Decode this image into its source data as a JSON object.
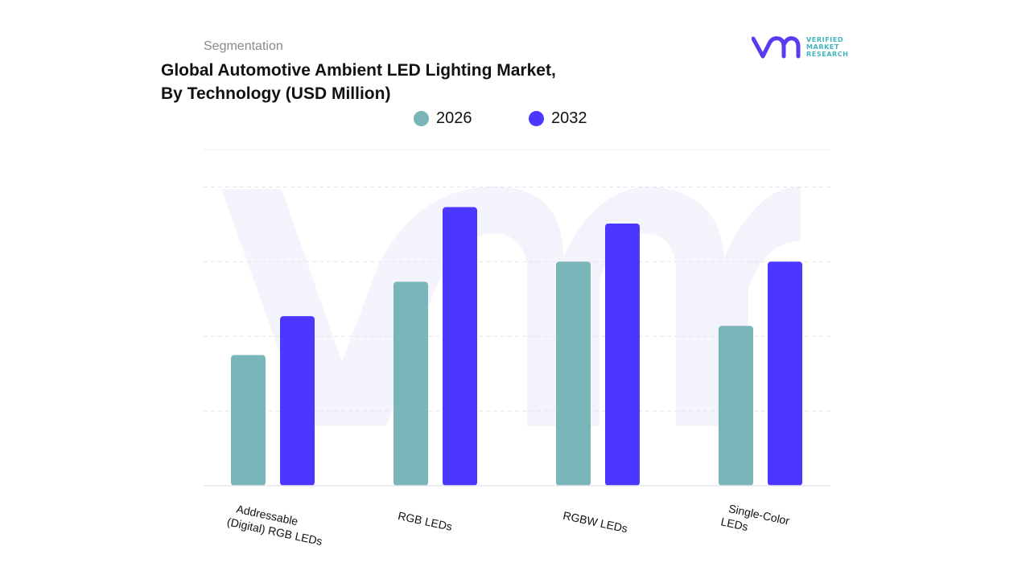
{
  "header": {
    "subtitle": "Segmentation",
    "title_line1": "Global Automotive Ambient LED Lighting Market,",
    "title_line2": "By Technology (USD Million)"
  },
  "logo": {
    "mark": "vmr",
    "line1": "VERIFIED",
    "line2": "MARKET",
    "line3": "RESEARCH",
    "color_mark": "#5a3bf0",
    "color_text": "#40b4bd"
  },
  "legend": [
    {
      "label": "2026",
      "color": "#7ab5b9"
    },
    {
      "label": "2032",
      "color": "#4b37ff"
    }
  ],
  "chart_data": {
    "type": "bar",
    "categories": [
      {
        "line1": "Addressable",
        "line2": "(Digital) RGB LEDs"
      },
      {
        "line1": "RGB LEDs",
        "line2": ""
      },
      {
        "line1": "RGBW LEDs",
        "line2": ""
      },
      {
        "line1": "Single-Color",
        "line2": "LEDs"
      }
    ],
    "series": [
      {
        "name": "2026",
        "color": "#7ab5b9",
        "values": [
          1.75,
          2.73,
          3.0,
          2.14
        ]
      },
      {
        "name": "2032",
        "color": "#4b37ff",
        "values": [
          2.27,
          3.73,
          3.51,
          3.0
        ]
      }
    ],
    "ylim": [
      0,
      4.5
    ],
    "grid": true,
    "legend_position": "top-center",
    "title": "Global Automotive Ambient LED Lighting Market, By Technology (USD Million)",
    "xlabel": "",
    "ylabel": ""
  }
}
